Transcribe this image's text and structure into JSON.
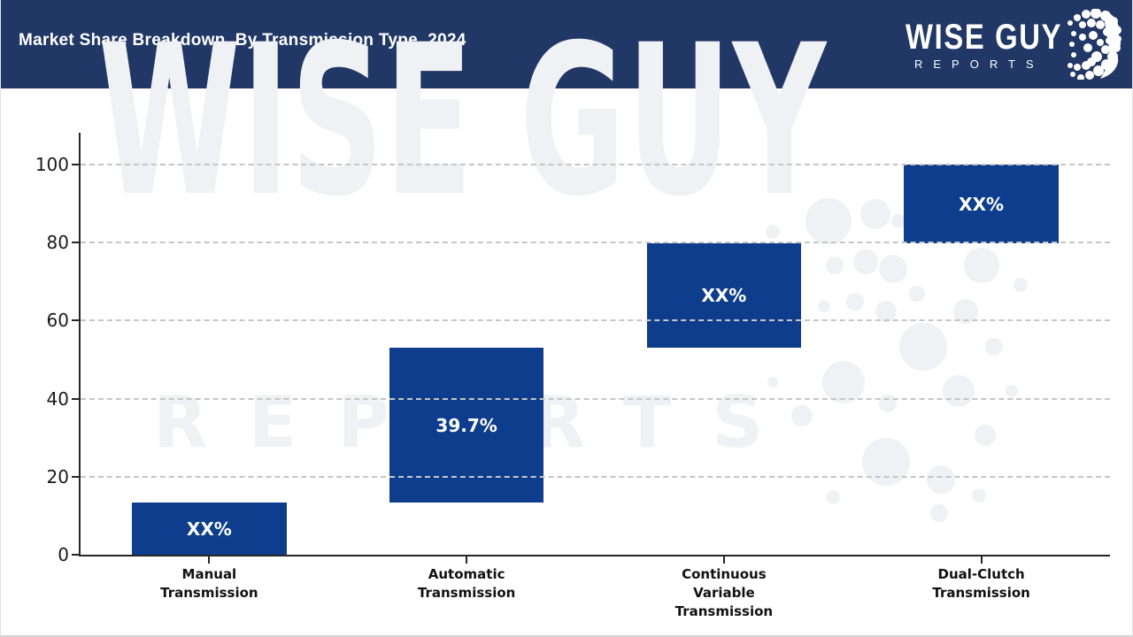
{
  "header": {
    "title": "Market Share Breakdown, By Transmission Type, 2024",
    "logo": {
      "wordmark": "WISE GUY",
      "sub": "REPORTS"
    }
  },
  "watermark": {
    "wordmark": "WISE GUY",
    "sub": "REPORTS"
  },
  "colors": {
    "header_bg": "#213765",
    "bar_fill": "#0d3d8c",
    "bar_label_text": "#ffffff",
    "grid_line": "#c6c6c6",
    "axis_line": "#262626",
    "tick_label_text": "#1a1a1a",
    "watermark": "#eff1f4",
    "title_text": "#ffffff"
  },
  "chart_data": {
    "type": "bar",
    "subtype": "waterfall",
    "title": "Market Share Breakdown, By Transmission Type, 2024",
    "categories": [
      {
        "lines": [
          "Manual",
          "Transmission"
        ]
      },
      {
        "lines": [
          "Automatic",
          "Transmission"
        ]
      },
      {
        "lines": [
          "Continuous",
          "Variable",
          "Transmission"
        ]
      },
      {
        "lines": [
          "Dual-Clutch",
          "Transmission"
        ]
      }
    ],
    "segments": [
      {
        "start": 0,
        "end": 13.3,
        "label": "XX%"
      },
      {
        "start": 13.3,
        "end": 53.0,
        "label": "39.7%"
      },
      {
        "start": 53.0,
        "end": 79.8,
        "label": "XX%"
      },
      {
        "start": 79.8,
        "end": 100,
        "label": "XX%"
      }
    ],
    "xlabel": "",
    "ylabel": "",
    "ylim": [
      0,
      100
    ],
    "yticks": [
      0,
      20,
      40,
      60,
      80,
      100
    ],
    "grid": {
      "axis": "y",
      "style": "dashed",
      "drawn_above_bars": true
    },
    "legend": null
  }
}
